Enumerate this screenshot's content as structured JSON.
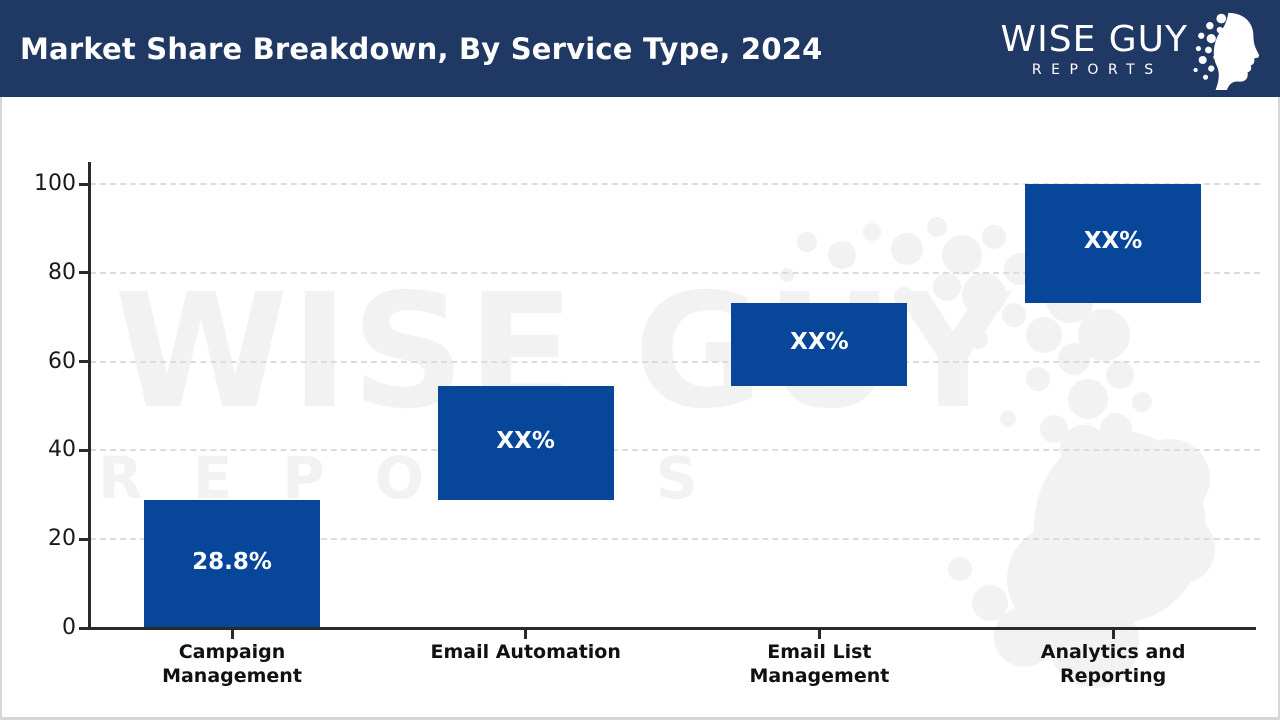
{
  "header": {
    "logo": {
      "line1": "WISE GUY",
      "line2": "REPORTS"
    }
  },
  "watermark": {
    "line1": "WISE GUY",
    "line2": "REPORTS"
  },
  "chart_data": {
    "type": "bar",
    "subtype": "waterfall",
    "title": "Market Share Breakdown, By Service Type, 2024",
    "categories": [
      "Campaign Management",
      "Email Automation",
      "Email List Management",
      "Analytics and Reporting"
    ],
    "segments": [
      {
        "category": "Campaign Management",
        "start": 0,
        "end": 28.8,
        "label": "28.8%"
      },
      {
        "category": "Email Automation",
        "start": 28.8,
        "end": 54.5,
        "label": "XX%"
      },
      {
        "category": "Email List Management",
        "start": 54.5,
        "end": 73.3,
        "label": "XX%"
      },
      {
        "category": "Analytics and Reporting",
        "start": 73.3,
        "end": 100,
        "label": "XX%"
      }
    ],
    "ylabel": "",
    "xlabel": "",
    "ylim": [
      0,
      100
    ],
    "yticks": [
      0,
      20,
      40,
      60,
      80,
      100
    ],
    "grid": "horizontal-dashed",
    "legend": "none",
    "bar_color": "#084699",
    "bar_label_color": "#ffffff"
  }
}
